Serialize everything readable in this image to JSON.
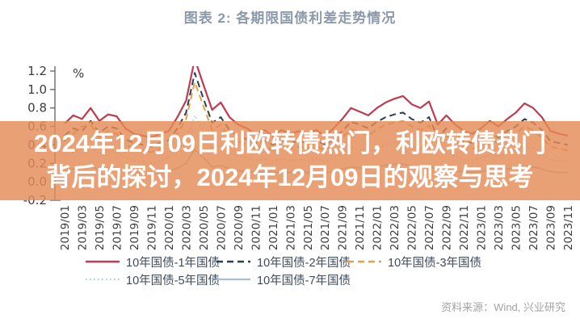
{
  "title": "图表 2: 各期限国债利差走势情况",
  "overlay": {
    "line1": "2024年12月09日利欧转债热门，利欧转债热门",
    "line2": "背后的探讨，2024年12月09日的观察与思考",
    "bg_color": "rgba(228,139,85,0.82)",
    "text_color": "#ffffff"
  },
  "source": "资料来源：Wind, 兴业研究",
  "chart_data": {
    "type": "line",
    "title": "图表 2: 各期限国债利差走势情况",
    "unit_label": "%",
    "ylim": [
      -0.2,
      1.2
    ],
    "yticks": [
      "-0.2",
      "0.0",
      "0.2",
      "0.4",
      "0.6",
      "0.8",
      "1.0",
      "1.2"
    ],
    "grid": false,
    "legend_position": "bottom",
    "x": [
      "2019/01",
      "2019/02",
      "2019/03",
      "2019/04",
      "2019/05",
      "2019/06",
      "2019/07",
      "2019/08",
      "2019/09",
      "2019/10",
      "2019/11",
      "2019/12",
      "2020/01",
      "2020/02",
      "2020/03",
      "2020/04",
      "2020/05",
      "2020/06",
      "2020/07",
      "2020/08",
      "2020/09",
      "2020/10",
      "2020/11",
      "2020/12",
      "2021/01",
      "2021/02",
      "2021/03",
      "2021/04",
      "2021/05",
      "2021/06",
      "2021/07",
      "2021/08",
      "2021/09",
      "2021/10",
      "2021/11",
      "2021/12",
      "2022/01",
      "2022/02",
      "2022/03",
      "2022/04",
      "2022/05",
      "2022/06",
      "2022/07",
      "2022/08",
      "2022/09",
      "2022/10",
      "2022/11",
      "2022/12",
      "2023/01",
      "2023/02",
      "2023/03",
      "2023/04",
      "2023/05",
      "2023/06",
      "2023/07",
      "2023/08",
      "2023/09",
      "2023/10",
      "2023/11"
    ],
    "xtick_every": 2,
    "series": [
      {
        "name": "10年国债-1年国债",
        "color": "#c13a50",
        "style": "solid",
        "width": 2.2,
        "values": [
          0.63,
          0.72,
          0.68,
          0.8,
          0.66,
          0.73,
          0.71,
          0.58,
          0.52,
          0.5,
          0.48,
          0.52,
          0.55,
          0.7,
          0.88,
          1.33,
          1.05,
          0.78,
          0.86,
          0.7,
          0.62,
          0.58,
          0.52,
          0.56,
          0.5,
          0.56,
          0.52,
          0.55,
          0.53,
          0.56,
          0.5,
          0.58,
          0.68,
          0.8,
          0.76,
          0.72,
          0.8,
          0.86,
          0.9,
          0.93,
          0.84,
          0.8,
          0.87,
          0.62,
          0.72,
          0.62,
          0.55,
          0.52,
          0.58,
          0.66,
          0.6,
          0.68,
          0.75,
          0.85,
          0.8,
          0.7,
          0.55,
          0.52,
          0.5
        ]
      },
      {
        "name": "10年国债-2年国债",
        "color": "#2b3d54",
        "style": "dashed",
        "width": 2,
        "values": [
          0.5,
          0.58,
          0.55,
          0.66,
          0.53,
          0.6,
          0.58,
          0.46,
          0.42,
          0.4,
          0.38,
          0.42,
          0.45,
          0.58,
          0.75,
          1.18,
          0.9,
          0.64,
          0.7,
          0.56,
          0.5,
          0.46,
          0.42,
          0.45,
          0.4,
          0.45,
          0.42,
          0.44,
          0.42,
          0.45,
          0.4,
          0.46,
          0.55,
          0.65,
          0.62,
          0.58,
          0.65,
          0.7,
          0.73,
          0.75,
          0.68,
          0.64,
          0.7,
          0.48,
          0.58,
          0.5,
          0.44,
          0.42,
          0.46,
          0.53,
          0.48,
          0.55,
          0.6,
          0.68,
          0.64,
          0.56,
          0.44,
          0.42,
          0.4
        ]
      },
      {
        "name": "10年国债-3年国债",
        "color": "#dfa14c",
        "style": "dashed",
        "width": 2,
        "values": [
          0.44,
          0.52,
          0.6,
          0.62,
          0.48,
          0.55,
          0.52,
          0.4,
          0.36,
          0.34,
          0.32,
          0.36,
          0.4,
          0.52,
          0.68,
          1.08,
          0.82,
          0.56,
          0.62,
          0.48,
          0.44,
          0.4,
          0.36,
          0.39,
          0.34,
          0.39,
          0.36,
          0.38,
          0.36,
          0.39,
          0.34,
          0.4,
          0.48,
          0.57,
          0.54,
          0.5,
          0.57,
          0.62,
          0.64,
          0.66,
          0.6,
          0.56,
          0.61,
          0.42,
          0.5,
          0.44,
          0.38,
          0.36,
          0.4,
          0.46,
          0.42,
          0.48,
          0.52,
          0.6,
          0.56,
          0.48,
          0.38,
          0.36,
          0.34
        ]
      },
      {
        "name": "10年国债-5年国债",
        "color": "#a5d2de",
        "style": "dotted",
        "width": 1.8,
        "values": [
          0.28,
          0.32,
          0.36,
          0.38,
          0.3,
          0.33,
          0.32,
          0.26,
          0.23,
          0.22,
          0.2,
          0.23,
          0.26,
          0.34,
          0.45,
          0.72,
          0.55,
          0.36,
          0.4,
          0.31,
          0.28,
          0.26,
          0.23,
          0.25,
          0.22,
          0.25,
          0.23,
          0.24,
          0.23,
          0.25,
          0.22,
          0.26,
          0.31,
          0.37,
          0.35,
          0.32,
          0.37,
          0.4,
          0.42,
          0.43,
          0.39,
          0.36,
          0.4,
          0.27,
          0.32,
          0.28,
          0.24,
          0.23,
          0.26,
          0.3,
          0.27,
          0.31,
          0.34,
          0.39,
          0.36,
          0.31,
          0.24,
          0.23,
          0.22
        ]
      },
      {
        "name": "10年国债-7年国债",
        "color": "#a7c0d0",
        "style": "solid",
        "width": 1.8,
        "values": [
          0.12,
          0.14,
          0.16,
          0.17,
          0.13,
          0.15,
          0.14,
          0.11,
          0.1,
          0.09,
          0.09,
          0.1,
          0.11,
          0.15,
          0.2,
          0.35,
          0.26,
          0.16,
          0.18,
          0.14,
          0.12,
          0.11,
          0.1,
          0.11,
          0.1,
          0.11,
          0.1,
          0.11,
          0.1,
          0.11,
          0.1,
          0.11,
          0.14,
          0.16,
          0.15,
          0.14,
          0.16,
          0.18,
          0.19,
          0.19,
          0.17,
          0.16,
          0.18,
          0.12,
          0.14,
          0.12,
          0.11,
          0.1,
          0.11,
          0.13,
          0.12,
          0.14,
          0.15,
          0.17,
          0.16,
          0.14,
          0.11,
          0.1,
          0.1
        ]
      }
    ]
  }
}
